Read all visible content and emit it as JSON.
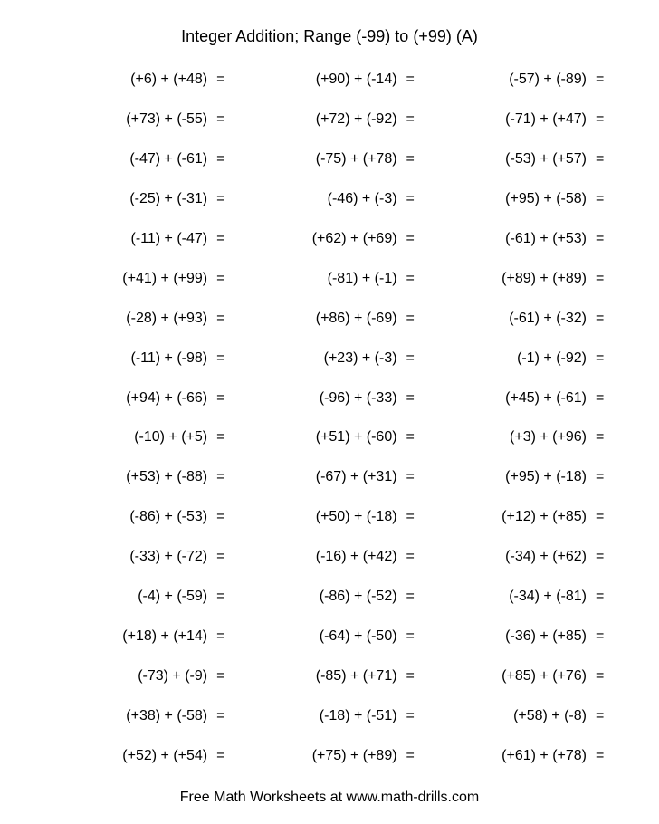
{
  "title": "Integer Addition; Range (-99) to (+99) (A)",
  "footer": "Free Math Worksheets at www.math-drills.com",
  "equals": "=",
  "problems": [
    [
      {
        "a": "+6",
        "b": "+48"
      },
      {
        "a": "+90",
        "b": "-14"
      },
      {
        "a": "-57",
        "b": "-89"
      }
    ],
    [
      {
        "a": "+73",
        "b": "-55"
      },
      {
        "a": "+72",
        "b": "-92"
      },
      {
        "a": "-71",
        "b": "+47"
      }
    ],
    [
      {
        "a": "-47",
        "b": "-61"
      },
      {
        "a": "-75",
        "b": "+78"
      },
      {
        "a": "-53",
        "b": "+57"
      }
    ],
    [
      {
        "a": "-25",
        "b": "-31"
      },
      {
        "a": "-46",
        "b": "-3"
      },
      {
        "a": "+95",
        "b": "-58"
      }
    ],
    [
      {
        "a": "-11",
        "b": "-47"
      },
      {
        "a": "+62",
        "b": "+69"
      },
      {
        "a": "-61",
        "b": "+53"
      }
    ],
    [
      {
        "a": "+41",
        "b": "+99"
      },
      {
        "a": "-81",
        "b": "-1"
      },
      {
        "a": "+89",
        "b": "+89"
      }
    ],
    [
      {
        "a": "-28",
        "b": "+93"
      },
      {
        "a": "+86",
        "b": "-69"
      },
      {
        "a": "-61",
        "b": "-32"
      }
    ],
    [
      {
        "a": "-11",
        "b": "-98"
      },
      {
        "a": "+23",
        "b": "-3"
      },
      {
        "a": "-1",
        "b": "-92"
      }
    ],
    [
      {
        "a": "+94",
        "b": "-66"
      },
      {
        "a": "-96",
        "b": "-33"
      },
      {
        "a": "+45",
        "b": "-61"
      }
    ],
    [
      {
        "a": "-10",
        "b": "+5"
      },
      {
        "a": "+51",
        "b": "-60"
      },
      {
        "a": "+3",
        "b": "+96"
      }
    ],
    [
      {
        "a": "+53",
        "b": "-88"
      },
      {
        "a": "-67",
        "b": "+31"
      },
      {
        "a": "+95",
        "b": "-18"
      }
    ],
    [
      {
        "a": "-86",
        "b": "-53"
      },
      {
        "a": "+50",
        "b": "-18"
      },
      {
        "a": "+12",
        "b": "+85"
      }
    ],
    [
      {
        "a": "-33",
        "b": "-72"
      },
      {
        "a": "-16",
        "b": "+42"
      },
      {
        "a": "-34",
        "b": "+62"
      }
    ],
    [
      {
        "a": "-4",
        "b": "-59"
      },
      {
        "a": "-86",
        "b": "-52"
      },
      {
        "a": "-34",
        "b": "-81"
      }
    ],
    [
      {
        "a": "+18",
        "b": "+14"
      },
      {
        "a": "-64",
        "b": "-50"
      },
      {
        "a": "-36",
        "b": "+85"
      }
    ],
    [
      {
        "a": "-73",
        "b": "-9"
      },
      {
        "a": "-85",
        "b": "+71"
      },
      {
        "a": "+85",
        "b": "+76"
      }
    ],
    [
      {
        "a": "+38",
        "b": "-58"
      },
      {
        "a": "-18",
        "b": "-51"
      },
      {
        "a": "+58",
        "b": "-8"
      }
    ],
    [
      {
        "a": "+52",
        "b": "+54"
      },
      {
        "a": "+75",
        "b": "+89"
      },
      {
        "a": "+61",
        "b": "+78"
      }
    ]
  ],
  "style": {
    "background_color": "#ffffff",
    "text_color": "#000000",
    "title_fontsize": 18,
    "body_fontsize": 16,
    "footer_fontsize": 16,
    "columns": 3,
    "rows": 18
  }
}
